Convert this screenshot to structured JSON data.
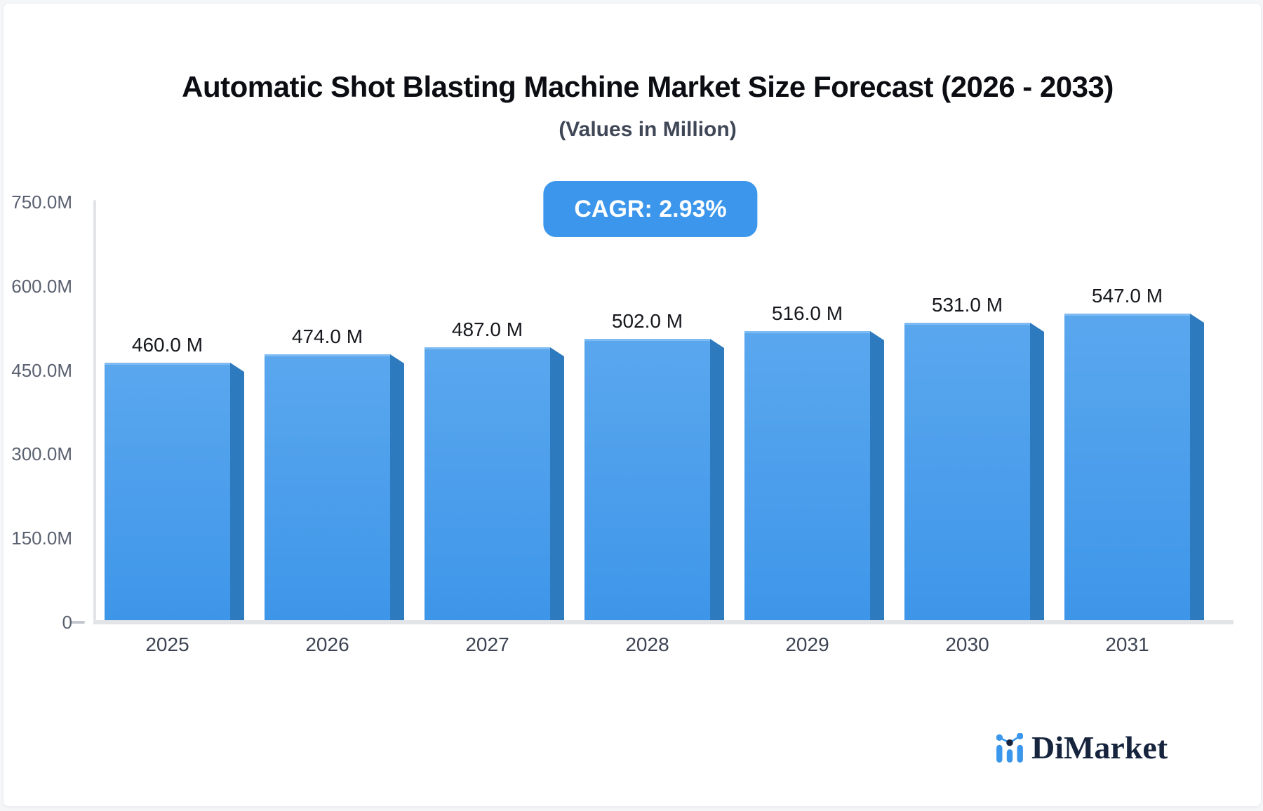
{
  "page": {
    "background": "#f5f6f8",
    "card_background": "#ffffff"
  },
  "header": {
    "title": "Automatic Shot Blasting Machine Market Size Forecast (2026 - 2033)",
    "subtitle": "(Values in Million)",
    "cagr_badge": "CAGR: 2.93%"
  },
  "chart_data": {
    "type": "bar",
    "title": "Automatic Shot Blasting Machine Market Size Forecast (2026 - 2033)",
    "subtitle": "(Values in Million)",
    "categories": [
      "2025",
      "2026",
      "2027",
      "2028",
      "2029",
      "2030",
      "2031"
    ],
    "values": [
      460,
      474,
      487,
      502,
      516,
      531,
      547
    ],
    "value_labels": [
      "460.0 M",
      "474.0 M",
      "487.0 M",
      "502.0 M",
      "516.0 M",
      "531.0 M",
      "547.0 M"
    ],
    "cagr": "2.93%",
    "xlabel": "",
    "ylabel": "",
    "ylim": [
      0,
      750
    ],
    "y_ticks": [
      {
        "value": 750,
        "label": "750.0M"
      },
      {
        "value": 600,
        "label": "600.0M"
      },
      {
        "value": 450,
        "label": "450.0M"
      },
      {
        "value": 300,
        "label": "300.0M"
      },
      {
        "value": 150,
        "label": "150.0M"
      },
      {
        "value": 0,
        "label": "0"
      }
    ],
    "grid": false,
    "legend": false,
    "bar_style": "3d-pseudo-depth"
  },
  "colors": {
    "accent": "#3b96ec",
    "bar_face_top": "#5aa7ee",
    "bar_face_bottom": "#3e96e9",
    "bar_side": "#2e7abf",
    "bar_top_highlight": "#7fbbf3",
    "axis_line": "#e2e4e8",
    "tick_text": "#5a6170",
    "category_text": "#3c4453",
    "value_text": "#16181d",
    "title_text": "#0b0d12",
    "subtitle_text": "#3f4757",
    "logo_navy": "#16243d",
    "logo_blue": "#3b97ec"
  },
  "branding": {
    "logo_text": "DiMarket",
    "logo_icon": "mini-bar-chart-icon"
  }
}
